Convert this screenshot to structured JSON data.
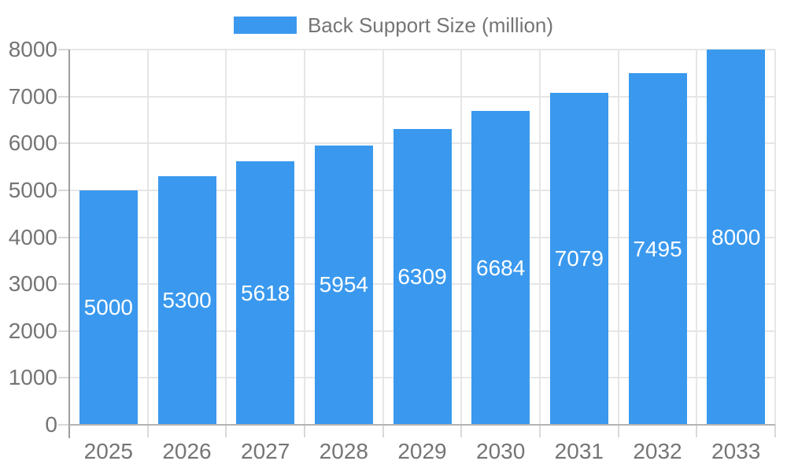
{
  "legend": {
    "label": "Back Support Size (million)"
  },
  "chart_data": {
    "type": "bar",
    "title": "Back Support Size (million)",
    "categories": [
      "2025",
      "2026",
      "2027",
      "2028",
      "2029",
      "2030",
      "2031",
      "2032",
      "2033"
    ],
    "values": [
      5000,
      5300,
      5618,
      5954,
      6309,
      6684,
      7079,
      7495,
      8000
    ],
    "data_labels": [
      "5000",
      "5300",
      "5618",
      "5954",
      "6309",
      "6684",
      "7079",
      "7495",
      "8000"
    ],
    "xlabel": "",
    "ylabel": "",
    "ylim": [
      0,
      8000
    ],
    "ytick_interval": 1000,
    "yticks": [
      0,
      1000,
      2000,
      3000,
      4000,
      5000,
      6000,
      7000,
      8000
    ],
    "grid": "horizontal gridlines at each ytick plus vertical gridlines at category boundaries",
    "legend_position": "top-center",
    "data_label_position": "inside-center",
    "colors": {
      "bar": "#3a99ee",
      "gridline": "#e6e6e6",
      "tick": "#d9d9d9",
      "y_axis_line": "#9e9e9e",
      "zero_line": "#b3b3b3",
      "axis_text": "#757575",
      "bar_label_text": "#ffffff",
      "background": "#ffffff"
    }
  }
}
